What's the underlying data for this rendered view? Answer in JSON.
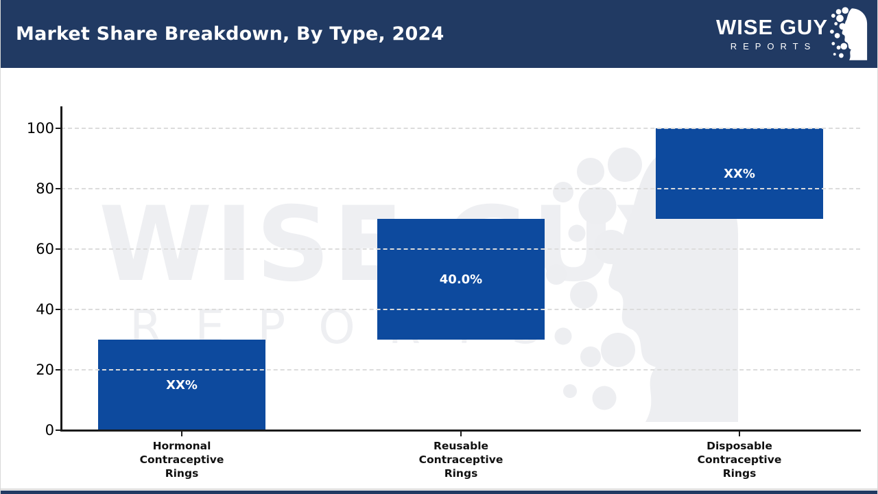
{
  "header": {
    "title": "Market Share Breakdown, By Type, 2024",
    "logo": {
      "brand": "WISE GUY",
      "sub": "REPORTS",
      "icon": "dotted-face-profile"
    }
  },
  "watermark": {
    "brand": "WISE GUY",
    "sub": "REPORTS",
    "icon": "dotted-face-profile"
  },
  "chart_data": {
    "type": "bar",
    "subtype": "floating-segment-bars",
    "title": "Market Share Breakdown, By Type, 2024",
    "categories": [
      "Hormonal Contraceptive Rings",
      "Reusable Contraceptive Rings",
      "Disposable Contraceptive Rings"
    ],
    "category_lines": [
      [
        "Hormonal",
        "Contraceptive",
        "Rings"
      ],
      [
        "Reusable",
        "Contraceptive",
        "Rings"
      ],
      [
        "Disposable",
        "Contraceptive",
        "Rings"
      ]
    ],
    "segments": [
      {
        "category": "Hormonal Contraceptive Rings",
        "start": 0,
        "end": 30,
        "label": "XX%"
      },
      {
        "category": "Reusable Contraceptive Rings",
        "start": 30,
        "end": 70,
        "label": "40.0%"
      },
      {
        "category": "Disposable Contraceptive Rings",
        "start": 70,
        "end": 100,
        "label": "XX%"
      }
    ],
    "xlabel": "",
    "ylabel": "",
    "ylim": [
      0,
      100
    ],
    "yticks": [
      0,
      20,
      40,
      60,
      80,
      100
    ],
    "grid": "horizontal-dashed, drawn over bars",
    "legend": null,
    "colors": {
      "bar": "#0d4a9e",
      "bar_label": "#ffffff",
      "axis": "#1a1a1a",
      "grid": "#dcdcdc",
      "header_bg": "#213a63",
      "watermark": "#eeeff2"
    }
  }
}
